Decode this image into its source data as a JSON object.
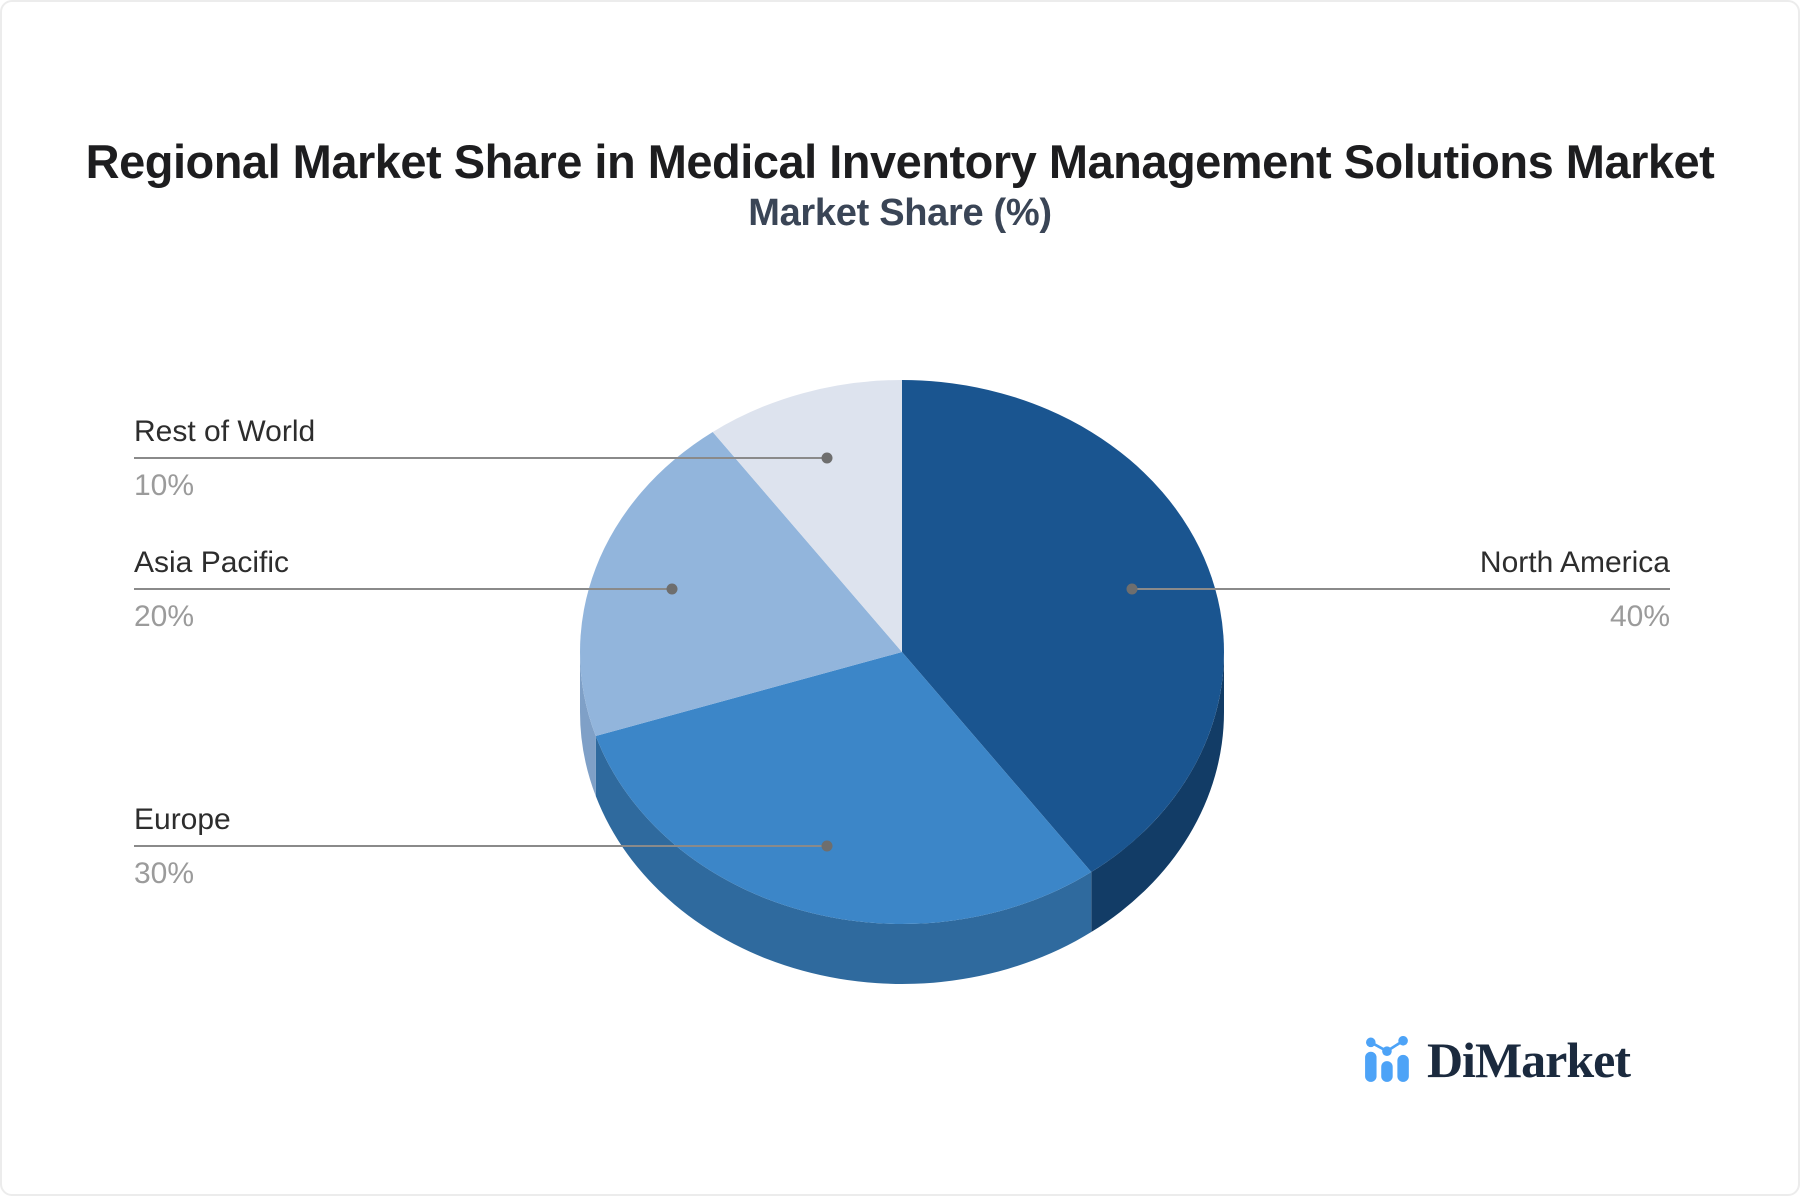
{
  "title": "Regional Market Share in Medical Inventory Management Solutions Market",
  "subtitle": "Market Share (%)",
  "chart_data": {
    "type": "pie",
    "style": "3d",
    "title": "Regional Market Share in Medical Inventory Management Solutions Market",
    "subtitle": "Market Share (%)",
    "unit": "%",
    "categories": [
      "North America",
      "Europe",
      "Asia Pacific",
      "Rest of World"
    ],
    "values": [
      40,
      30,
      20,
      10
    ],
    "display_values": [
      "40%",
      "30%",
      "20%",
      "10%"
    ],
    "colors": [
      "#1A5590",
      "#3C86C8",
      "#92B5DC",
      "#DDE3EE"
    ],
    "side_colors": [
      "#123C66",
      "#2F6A9E",
      "#7FA0C7",
      "#B9C4D6"
    ],
    "start_angle_deg": 0,
    "direction": "clockwise",
    "legend_position": "callout-labels",
    "grid": false
  },
  "callouts": [
    {
      "label": "North America",
      "value": "40%",
      "side": "right"
    },
    {
      "label": "Europe",
      "value": "30%",
      "side": "left"
    },
    {
      "label": "Asia Pacific",
      "value": "20%",
      "side": "left"
    },
    {
      "label": "Rest of World",
      "value": "10%",
      "side": "left"
    }
  ],
  "colors": {
    "title": "#1D1D1F",
    "subtitle": "#3A4556",
    "callout_label": "#2D2D2D",
    "callout_value": "#9B9B9B",
    "leader_line": "#8A8A8A",
    "dot": "#6E6E6E",
    "logo_accent": "#4DA3F7",
    "logo_text": "#1B2A3E",
    "background": "#FFFFFF"
  },
  "logo": {
    "text": "DiMarket",
    "icon": "bar-chart-logo-icon"
  }
}
